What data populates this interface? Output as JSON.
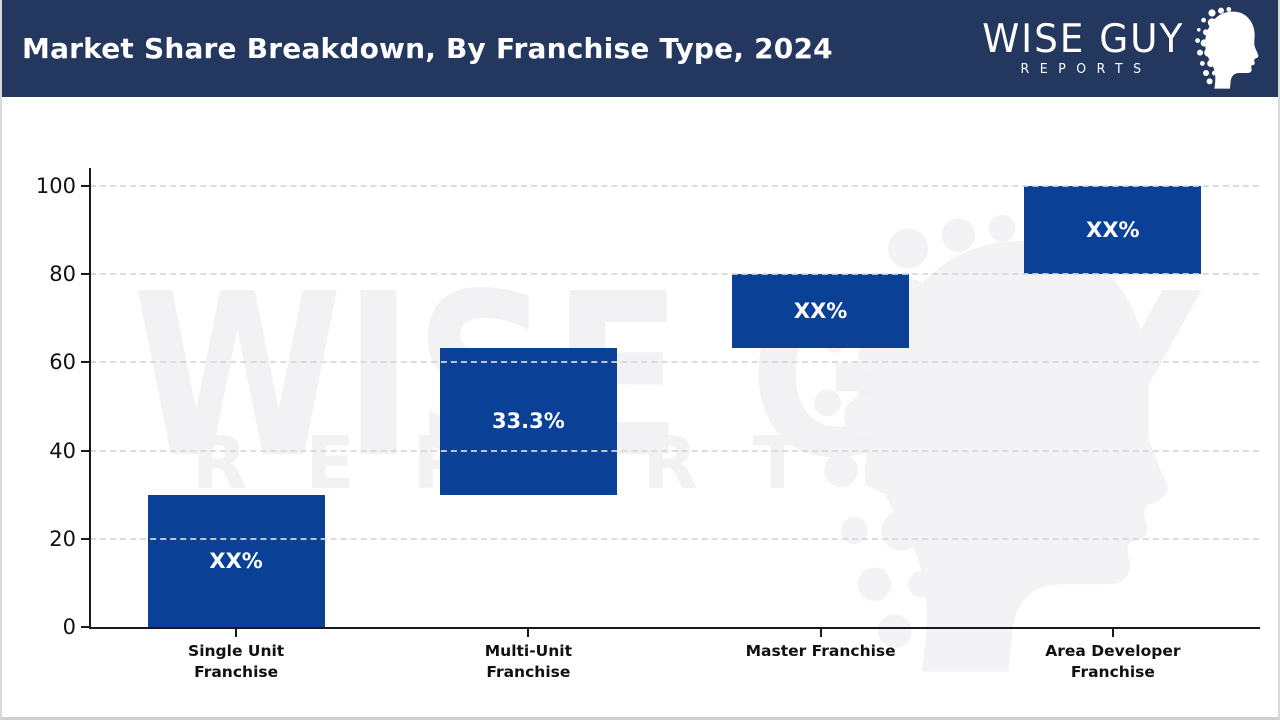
{
  "header": {
    "title": "Market Share Breakdown, By Franchise Type, 2024",
    "logo": {
      "line1": "WISE GUY",
      "line2": "REPORTS"
    }
  },
  "watermark": {
    "line1": "WISE GUY",
    "line2": "REPORTS"
  },
  "colors": {
    "header_bg": "#24375e",
    "bar": "#0a4096",
    "grid": "#d8d8d8",
    "axis": "#1a1a1a",
    "watermark": "#f2f2f4",
    "bar_label": "#ffffff"
  },
  "chart_data": {
    "type": "bar",
    "subtype": "waterfall",
    "title": "Market Share Breakdown, By Franchise Type, 2024",
    "categories": [
      "Single Unit\nFranchise",
      "Multi-Unit\nFranchise",
      "Master Franchise",
      "Area Developer\nFranchise"
    ],
    "segments": [
      {
        "category": "Single Unit Franchise",
        "start": 0,
        "end": 30,
        "label": "XX%"
      },
      {
        "category": "Multi-Unit Franchise",
        "start": 30,
        "end": 63.3,
        "label": "33.3%"
      },
      {
        "category": "Master Franchise",
        "start": 63.3,
        "end": 80,
        "label": "XX%"
      },
      {
        "category": "Area Developer Franchise",
        "start": 80,
        "end": 100,
        "label": "XX%"
      }
    ],
    "yticks": [
      0,
      20,
      40,
      60,
      80,
      100
    ],
    "ylim": [
      0,
      104
    ],
    "xlabel": "",
    "ylabel": "",
    "grid": "dashed horizontal",
    "legend": "none",
    "bar_color": "#0a4096"
  }
}
